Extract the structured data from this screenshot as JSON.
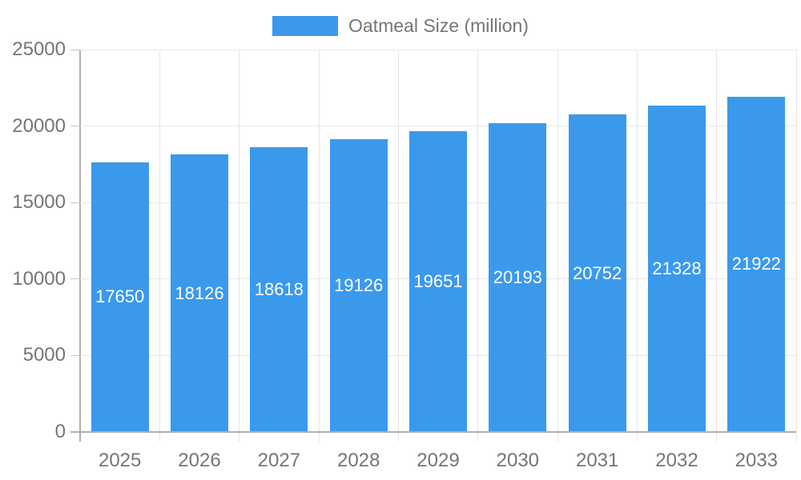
{
  "legend": {
    "position": "top-center"
  },
  "chart_data": {
    "type": "bar",
    "title": "",
    "xlabel": "",
    "ylabel": "",
    "series_name": "Oatmeal Size (million)",
    "categories": [
      "2025",
      "2026",
      "2027",
      "2028",
      "2029",
      "2030",
      "2031",
      "2032",
      "2033"
    ],
    "values": [
      17650,
      18126,
      18618,
      19126,
      19651,
      20193,
      20752,
      21328,
      21922
    ],
    "ylim": [
      0,
      25000
    ],
    "yticks": [
      0,
      5000,
      10000,
      15000,
      20000,
      25000
    ],
    "grid": true,
    "legend_position": "top-center",
    "bar_color": "#3b99ec",
    "value_label_color": "#ffffff",
    "tick_text_color": "#757575",
    "axis_line_color": "#b0b0b0",
    "gridline_color": "#e6e6e6",
    "tick_mark_color": "#c4c4c4"
  }
}
